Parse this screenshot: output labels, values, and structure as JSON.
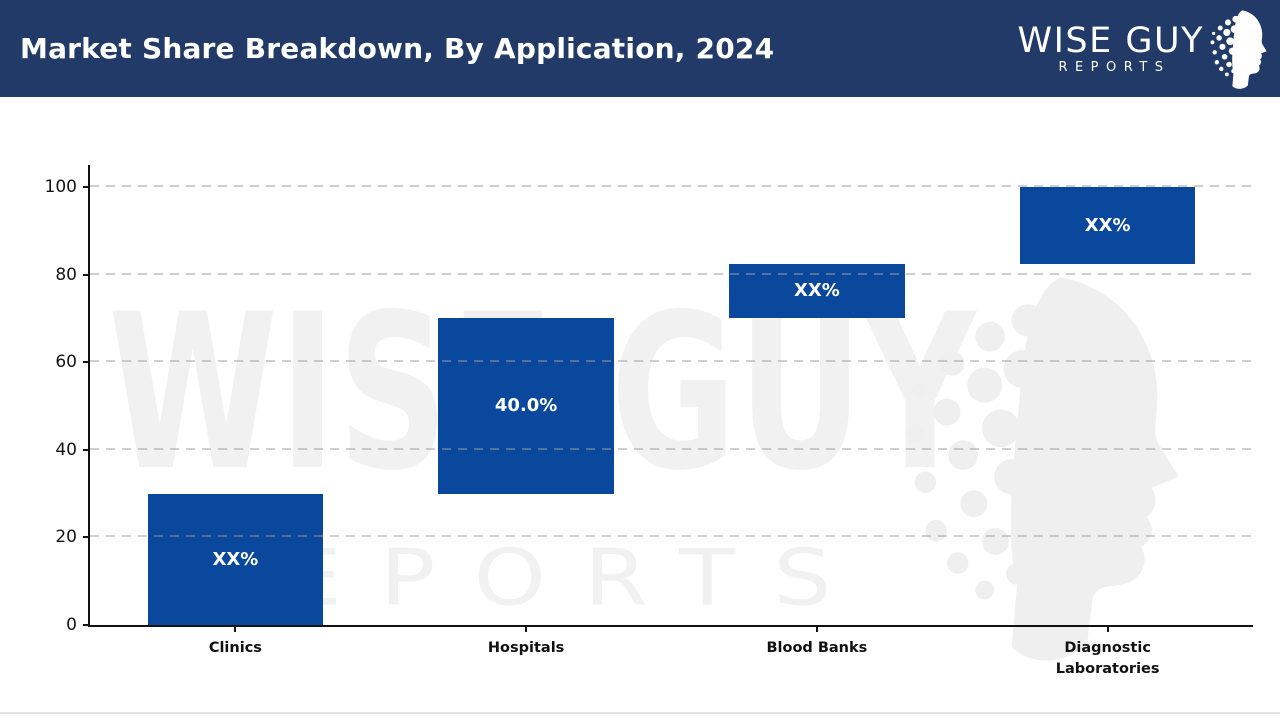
{
  "header": {
    "title": "Market Share Breakdown, By Application, 2024",
    "logo": {
      "line1": "WISE GUY",
      "line2": "REPORTS"
    }
  },
  "watermark": {
    "line1": "WISE GUY",
    "line2": "REPORTS"
  },
  "colors": {
    "header_bg": "#213A68",
    "bar": "#0A489E",
    "axis": "#111111",
    "grid": "#D5D5D5",
    "watermark": "#F1F1F1",
    "bar_label": "#FFFFFF"
  },
  "chart_data": {
    "type": "bar",
    "subtype": "floating-percentage-bars",
    "title": "Market Share Breakdown, By Application, 2024",
    "xlabel": "",
    "ylabel": "",
    "ylim": [
      0,
      105
    ],
    "yticks": [
      0,
      20,
      40,
      60,
      80,
      100
    ],
    "grid": true,
    "legend": false,
    "bar_width_pct": 15.1,
    "categories": [
      "Clinics",
      "Hospitals",
      "Blood Banks",
      "Diagnostic Laboratories"
    ],
    "bars": [
      {
        "category": "Clinics",
        "tick_label": "Clinics",
        "start": 0,
        "end": 30,
        "value": 30,
        "label": "XX%"
      },
      {
        "category": "Hospitals",
        "tick_label": "Hospitals",
        "start": 30,
        "end": 70,
        "value": 40,
        "label": "40.0%"
      },
      {
        "category": "Blood Banks",
        "tick_label": "Blood Banks",
        "start": 70,
        "end": 82.5,
        "value": 12.5,
        "label": "XX%"
      },
      {
        "category": "Diagnostic Laboratories",
        "tick_label": "Diagnostic\nLaboratories",
        "start": 82.5,
        "end": 100,
        "value": 17.5,
        "label": "XX%"
      }
    ]
  }
}
